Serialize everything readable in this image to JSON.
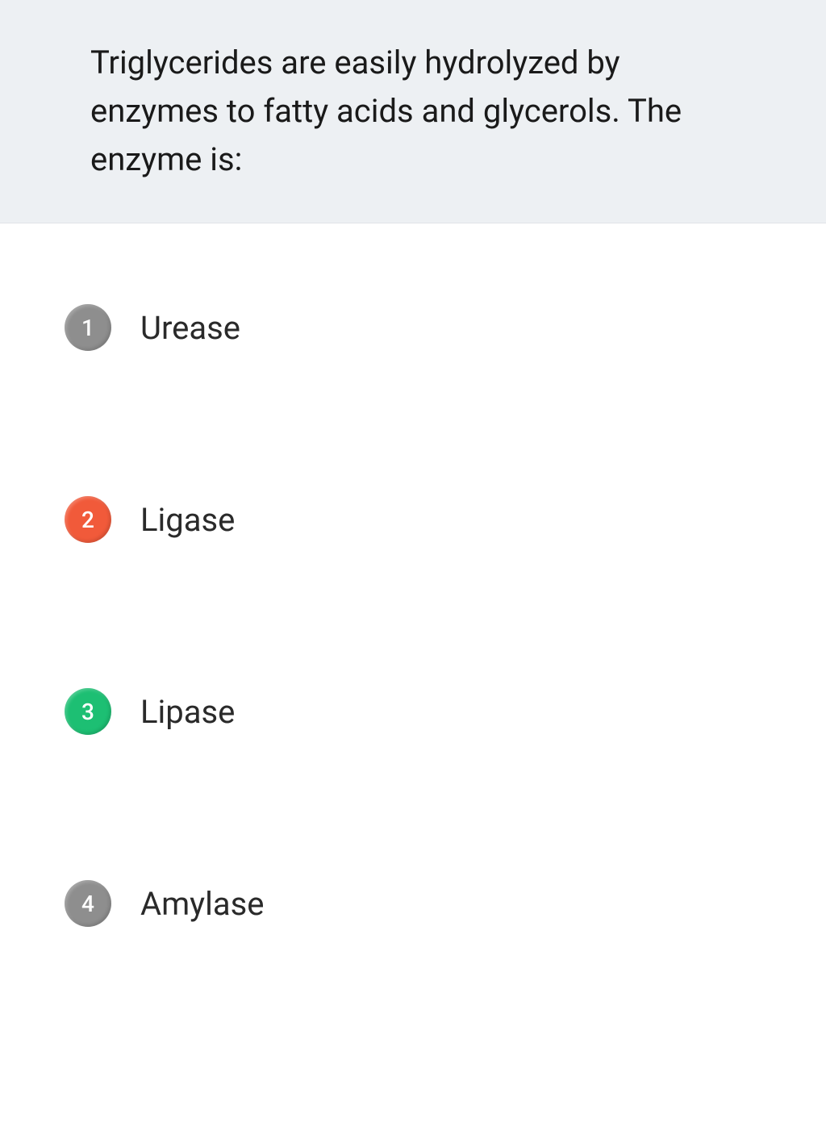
{
  "question": {
    "text": "Triglycerides are easily hydrolyzed by enzymes to fatty acids and glycerols. The enzyme is:",
    "header_bg": "#edf0f3",
    "text_color": "#1a1a1a",
    "font_size": 40
  },
  "options": [
    {
      "number": "1",
      "label": "Urease",
      "badge_color": "#8e8e8e",
      "selected": false
    },
    {
      "number": "2",
      "label": "Ligase",
      "badge_color": "#f15a3a",
      "selected": false
    },
    {
      "number": "3",
      "label": "Lipase",
      "badge_color": "#1dbf73",
      "selected": false
    },
    {
      "number": "4",
      "label": "Amylase",
      "badge_color": "#8e8e8e",
      "selected": false
    }
  ],
  "styling": {
    "body_bg": "#f7f8fa",
    "options_bg": "#ffffff",
    "option_font_size": 40,
    "badge_size": 58,
    "badge_text_color": "#ffffff"
  }
}
